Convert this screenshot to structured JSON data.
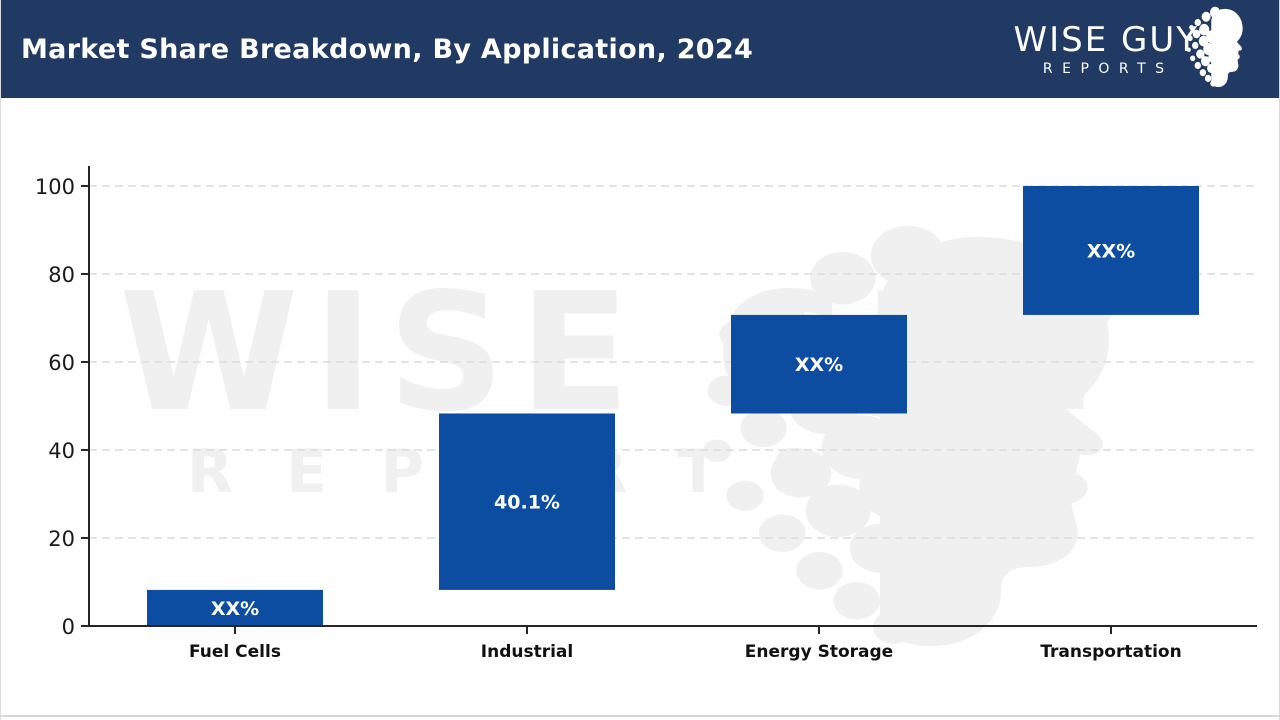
{
  "header": {
    "title": "Market Share Breakdown, By Application, 2024",
    "background_color": "#213a64",
    "logo": {
      "line1": "WISE GUY",
      "line2": "REPORTS"
    }
  },
  "watermark": {
    "line1": "WISE GUY",
    "line2": "REPORTS",
    "color": "#f0f0f0"
  },
  "chart_data": {
    "type": "bar",
    "subtype": "waterfall-floating-segments",
    "title": "Market Share Breakdown, By Application, 2024",
    "categories": [
      "Fuel Cells",
      "Industrial",
      "Energy Storage",
      "Transportation"
    ],
    "segments": [
      {
        "category": "Fuel Cells",
        "start": 0,
        "end": 8.2,
        "label": "XX%"
      },
      {
        "category": "Industrial",
        "start": 8.2,
        "end": 48.3,
        "label": "40.1%"
      },
      {
        "category": "Energy Storage",
        "start": 48.3,
        "end": 70.7,
        "label": "XX%"
      },
      {
        "category": "Transportation",
        "start": 70.7,
        "end": 100,
        "label": "XX%"
      }
    ],
    "xlabel": "",
    "ylabel": "",
    "ylim": [
      0,
      100
    ],
    "yticks": [
      0,
      20,
      40,
      60,
      80,
      100
    ],
    "grid": "horizontal-dashed",
    "legend": "none",
    "colors": {
      "bar": "#0c4da2",
      "bar_label": "#ffffff",
      "axis": "#262626",
      "tick_label": "#1a1a1a",
      "gridline": "#dcdcdc"
    }
  }
}
